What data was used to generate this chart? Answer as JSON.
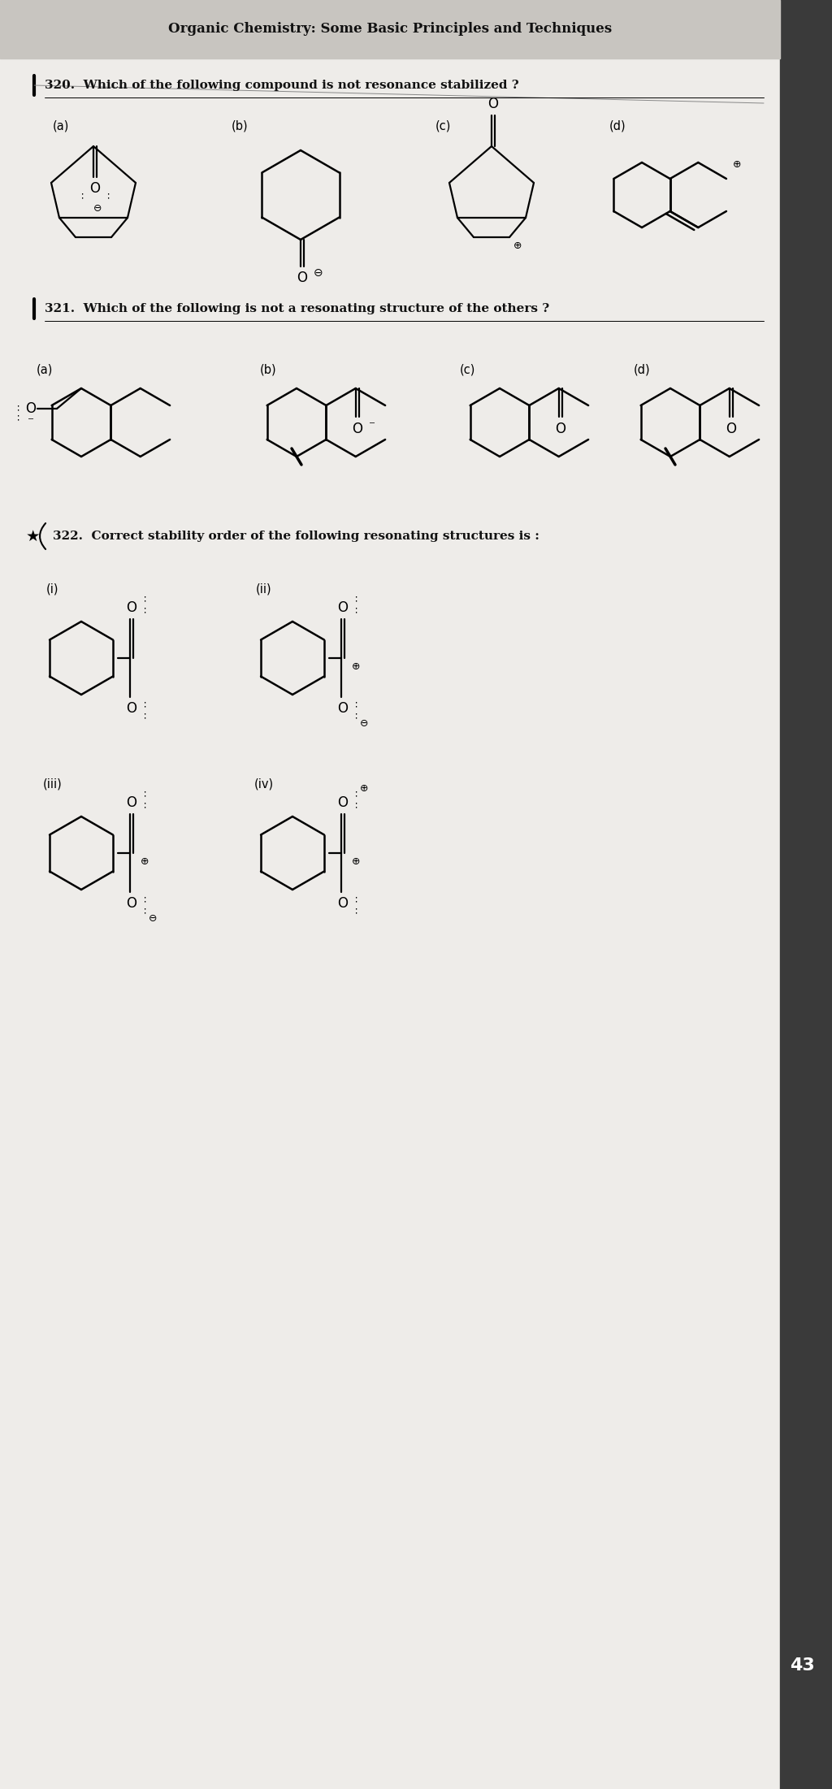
{
  "bg_color": "#e8e6e3",
  "page_bg": "#eeece9",
  "sidebar_color": "#3a3a3a",
  "title_bg": "#c8c5c0",
  "title_text": "Organic Chemistry: Some Basic Principles and Techniques",
  "page_num": "43",
  "q320": "320.  Which of the following compound is not resonance stabilized ?",
  "q321": "321.  Which of the following is not a resonating structure of the others ?",
  "q322": "322.  Correct stability order of the following resonating structures is :"
}
